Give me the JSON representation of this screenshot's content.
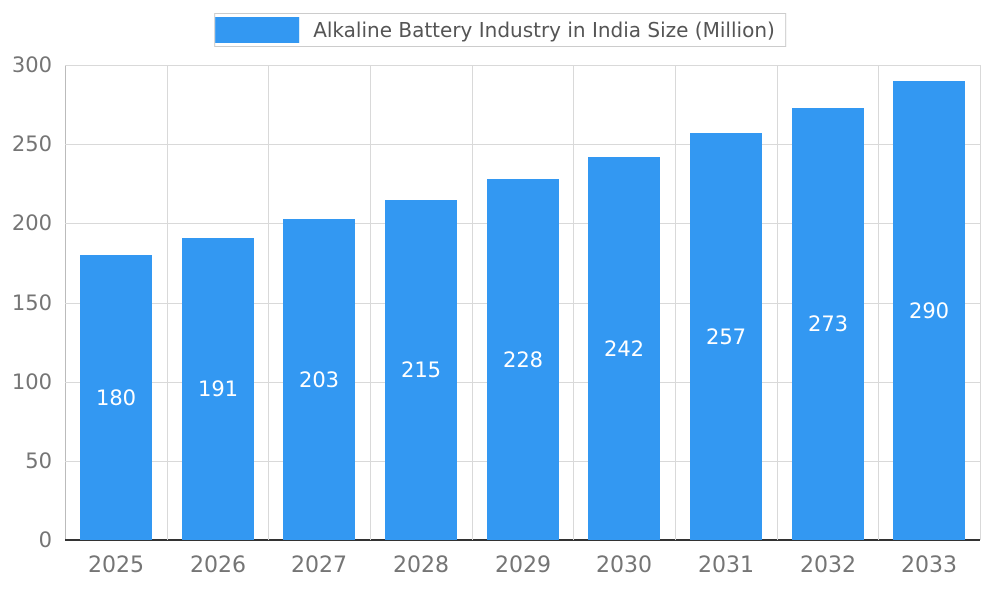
{
  "legend": {
    "label": "Alkaline Battery Industry in India Size (Million)"
  },
  "colors": {
    "bar": "#3398f2",
    "grid": "#d9d9d9",
    "axis_text": "#757575",
    "legend_text": "#555555",
    "axis_line": "#333333",
    "bar_label_text": "#ffffff"
  },
  "chart_data": {
    "type": "bar",
    "title": "Alkaline Battery Industry in India Size (Million)",
    "categories": [
      "2025",
      "2026",
      "2027",
      "2028",
      "2029",
      "2030",
      "2031",
      "2032",
      "2033"
    ],
    "values": [
      180,
      191,
      203,
      215,
      228,
      242,
      257,
      273,
      290
    ],
    "xlabel": "",
    "ylabel": "",
    "ylim": [
      0,
      300
    ],
    "yticks": [
      0,
      50,
      100,
      150,
      200,
      250,
      300
    ],
    "grid": true,
    "legend_position": "top",
    "bar_labels_visible": true
  }
}
